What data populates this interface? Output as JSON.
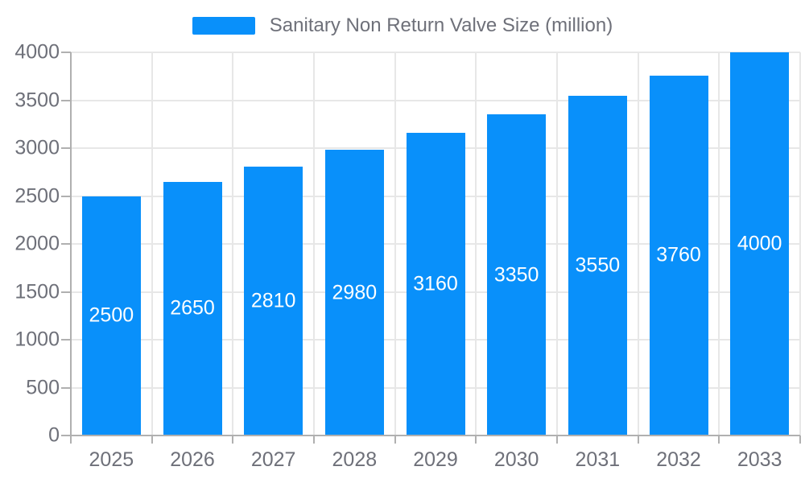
{
  "chart_data": {
    "type": "bar",
    "title": "Sanitary Non Return Valve Size (million)",
    "categories": [
      "2025",
      "2026",
      "2027",
      "2028",
      "2029",
      "2030",
      "2031",
      "2032",
      "2033"
    ],
    "values": [
      2500,
      2650,
      2810,
      2980,
      3160,
      3350,
      3550,
      3760,
      4000
    ],
    "bar_value_labels": [
      "2500",
      "2650",
      "2810",
      "2980",
      "3160",
      "3350",
      "3550",
      "3760",
      "4000"
    ],
    "xlabel": "",
    "ylabel": "",
    "ylim": [
      0,
      4000
    ],
    "ytick_step": 500,
    "yticks": [
      0,
      500,
      1000,
      1500,
      2000,
      2500,
      3000,
      3500,
      4000
    ],
    "grid": true,
    "legend_position": "top-center",
    "colors": {
      "bar": "#0990FA",
      "bar_label_text": "#FFFFFF",
      "axis_text": "#6E7079",
      "legend_text": "#6E7079",
      "grid_line": "#E7E7E7",
      "axis_line": "#B0B0B0",
      "background": "#FFFFFF"
    }
  }
}
